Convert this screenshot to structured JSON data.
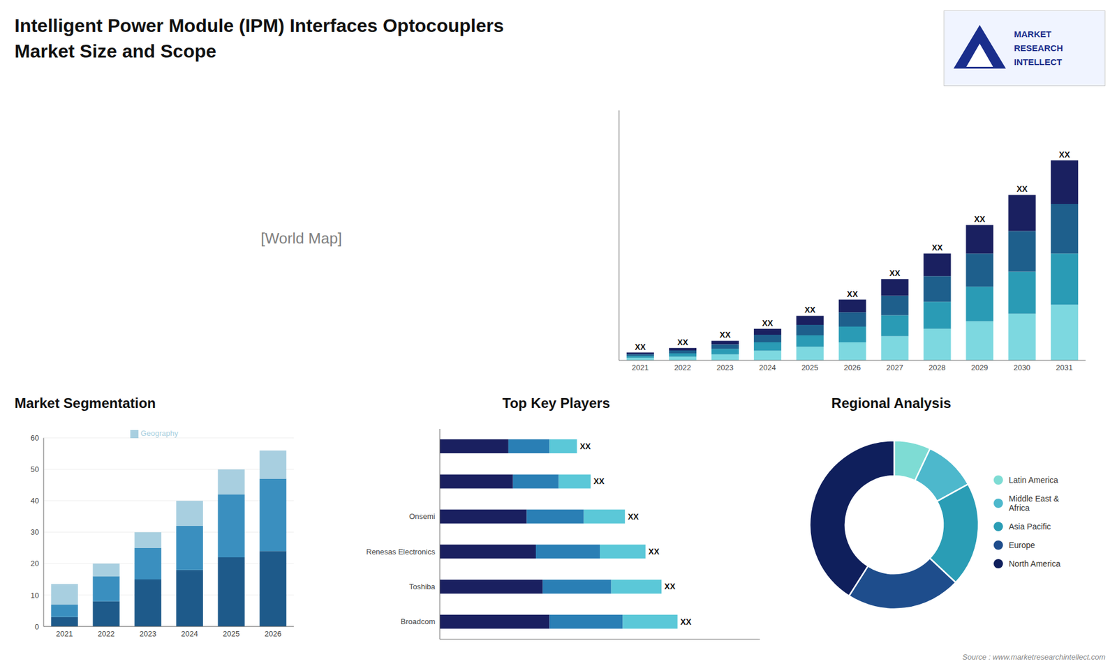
{
  "chart_data": [
    {
      "type": "bar",
      "title": "Intelligent Power Module (IPM) Interfaces Optocouplers",
      "subtitle": "Market Size and Scope",
      "categories": [
        "2021",
        "2022",
        "2023",
        "2024",
        "2025",
        "2026",
        "2027",
        "2028",
        "2029",
        "2030",
        "2031"
      ],
      "series": [
        {
          "color": "#7dd8e0",
          "values": [
            0.8,
            1.2,
            2.0,
            3.2,
            4.5,
            6.0,
            8.0,
            10.5,
            13.0,
            15.5,
            18.5
          ]
        },
        {
          "color": "#2a9bb5",
          "values": [
            0.7,
            1.1,
            1.8,
            2.8,
            3.8,
            5.2,
            7.0,
            9.0,
            11.5,
            14.0,
            17.0
          ]
        },
        {
          "color": "#1e5f8c",
          "values": [
            0.6,
            1.0,
            1.5,
            2.5,
            3.5,
            4.8,
            6.5,
            8.5,
            11.0,
            13.5,
            16.5
          ]
        },
        {
          "color": "#1a2060",
          "values": [
            0.5,
            0.8,
            1.2,
            2.0,
            3.0,
            4.2,
            5.5,
            7.5,
            9.5,
            12.0,
            14.5
          ],
          "value_labels": [
            "XX",
            "XX",
            "XX",
            "XX",
            "XX",
            "XX",
            "XX",
            "XX",
            "XX",
            "XX",
            "XX"
          ]
        }
      ],
      "stacked": true,
      "ylim": [
        0,
        83.125
      ],
      "tick_labels": "x",
      "grid": false,
      "annotations": [
        "[World Map]",
        "MARKET",
        "RESEARCH",
        "INTELLECT",
        "Source : www.marketresearchintellect.com"
      ]
    },
    {
      "type": "bar",
      "title": "Market Segmentation",
      "categories": [
        "2021",
        "2022",
        "2023",
        "2024",
        "2025",
        "2026"
      ],
      "series": [
        {
          "color": "#1e5a8a",
          "values": [
            3,
            8,
            15,
            18,
            22,
            24
          ]
        },
        {
          "color": "#3a8fbf",
          "values": [
            4,
            8,
            10,
            14,
            20,
            23
          ]
        },
        {
          "name": "Geography",
          "color": "#a8cfe0",
          "values": [
            6.5,
            4,
            5,
            8,
            8,
            9
          ]
        }
      ],
      "stacked": true,
      "ylim": [
        0,
        60
      ],
      "yticks": [
        0,
        10,
        20,
        30,
        40,
        50,
        60
      ],
      "grid": true,
      "legend": "top"
    },
    {
      "type": "bar",
      "title": "Top Key Players",
      "orientation": "horizontal",
      "categories": [
        null,
        null,
        "Onsemi",
        "Renesas Electronics",
        "Toshiba",
        "Broadcom"
      ],
      "series": [
        {
          "color": "#1a2060",
          "values": [
            3.0,
            3.2,
            3.8,
            4.2,
            4.5,
            4.8
          ]
        },
        {
          "color": "#2a7fb5",
          "values": [
            1.8,
            2.0,
            2.5,
            2.8,
            3.0,
            3.2
          ]
        },
        {
          "color": "#5bc8d8",
          "values": [
            1.2,
            1.4,
            1.8,
            2.0,
            2.2,
            2.4
          ],
          "value_labels": [
            "XX",
            "XX",
            "XX",
            "XX",
            "XX",
            "XX"
          ]
        }
      ],
      "stacked": true,
      "xlim": [
        0,
        14
      ],
      "tick_labels": "y",
      "grid": false
    },
    {
      "type": "pie",
      "title": "Regional Analysis",
      "categories": [
        "Latin America",
        "Middle East &\nAfrica",
        "Asia Pacific",
        "Europe",
        "North America"
      ],
      "values": [
        7,
        10,
        20,
        22,
        41
      ],
      "colors": [
        "#7edcd4",
        "#4db8cc",
        "#2a9db5",
        "#1e4d8c",
        "#0f1f5c"
      ],
      "legend": "right"
    }
  ]
}
